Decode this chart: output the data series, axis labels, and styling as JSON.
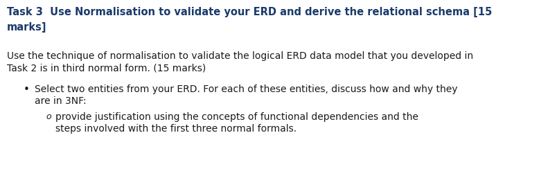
{
  "background_color": "#ffffff",
  "title_line1": "Task 3  Use Normalisation to validate your ERD and derive the relational schema [15",
  "title_line2": "marks]",
  "title_color": "#1B3A6B",
  "title_fontsize": 10.5,
  "body_text_line1": "Use the technique of normalisation to validate the logical ERD data model that you developed in",
  "body_text_line2": "Task 2 is in third normal form. (15 marks)",
  "body_color": "#1a1a1a",
  "body_fontsize": 10.0,
  "bullet_text_line1": "Select two entities from your ERD. For each of these entities, discuss how and why they",
  "bullet_text_line2": "are in 3NF:",
  "bullet_color": "#1a1a1a",
  "bullet_fontsize": 10.0,
  "sub_bullet_text_line1": "provide justification using the concepts of functional dependencies and the",
  "sub_bullet_text_line2": "steps involved with the first three normal formals.",
  "sub_bullet_color": "#1a1a1a",
  "sub_bullet_fontsize": 10.0,
  "fig_width": 7.91,
  "fig_height": 2.83,
  "dpi": 100
}
